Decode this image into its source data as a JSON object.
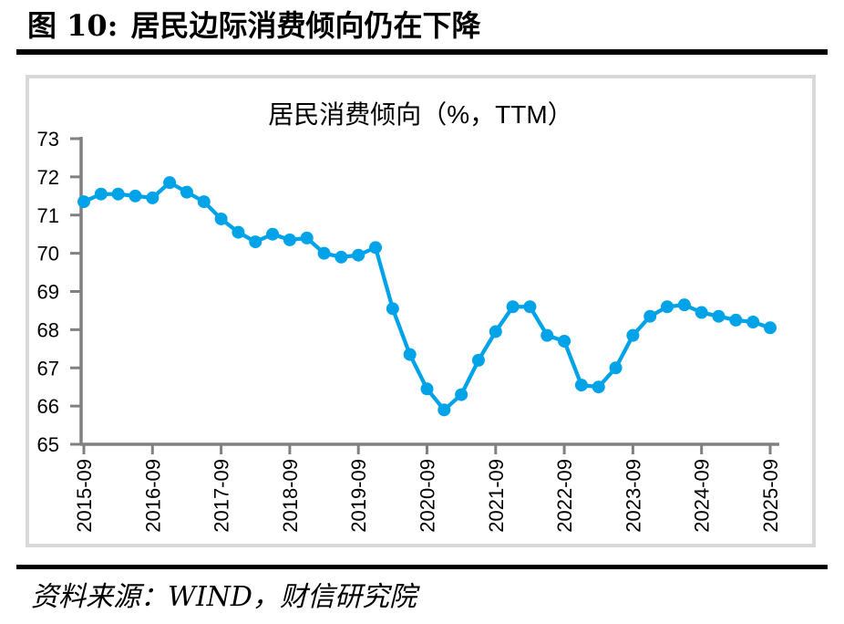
{
  "header": {
    "figure_label": "图 10:",
    "figure_title": "居民边际消费倾向仍在下降"
  },
  "footer": {
    "source_text": "资料来源：WIND，财信研究院"
  },
  "chart_data": {
    "type": "line",
    "title": "居民消费倾向（%，TTM）",
    "xlabel": "",
    "ylabel": "",
    "ylim": [
      65,
      73
    ],
    "y_ticks": [
      65,
      66,
      67,
      68,
      69,
      70,
      71,
      72,
      73
    ],
    "grid": false,
    "legend_position": "none",
    "line_color": "#00A2E8",
    "axis_color": "#808080",
    "marker": "circle",
    "x": [
      "2015-09",
      "2015-12",
      "2016-03",
      "2016-06",
      "2016-09",
      "2016-12",
      "2017-03",
      "2017-06",
      "2017-09",
      "2017-12",
      "2018-03",
      "2018-06",
      "2018-09",
      "2018-12",
      "2019-03",
      "2019-06",
      "2019-09",
      "2019-12",
      "2020-03",
      "2020-06",
      "2020-09",
      "2020-12",
      "2021-03",
      "2021-06",
      "2021-09",
      "2021-12",
      "2022-03",
      "2022-06",
      "2022-09",
      "2022-12",
      "2023-03",
      "2023-06",
      "2023-09",
      "2023-12",
      "2024-03",
      "2024-06",
      "2024-09",
      "2024-12",
      "2025-03",
      "2025-06",
      "2025-09"
    ],
    "x_tick_labels": [
      "2015-09",
      "2016-09",
      "2017-09",
      "2018-09",
      "2019-09",
      "2020-09",
      "2021-09",
      "2022-09",
      "2023-09",
      "2024-09",
      "2025-09"
    ],
    "series": [
      {
        "name": "居民消费倾向（%，TTM）",
        "values": [
          71.35,
          71.55,
          71.55,
          71.5,
          71.45,
          71.85,
          71.6,
          71.35,
          70.9,
          70.55,
          70.3,
          70.5,
          70.35,
          70.4,
          70.0,
          69.9,
          69.95,
          70.15,
          68.55,
          67.35,
          66.45,
          65.9,
          66.3,
          67.2,
          67.95,
          68.6,
          68.6,
          67.85,
          67.7,
          66.55,
          66.5,
          67.0,
          67.85,
          68.35,
          68.6,
          68.65,
          68.45,
          68.35,
          68.25,
          68.2,
          68.05
        ]
      }
    ]
  }
}
